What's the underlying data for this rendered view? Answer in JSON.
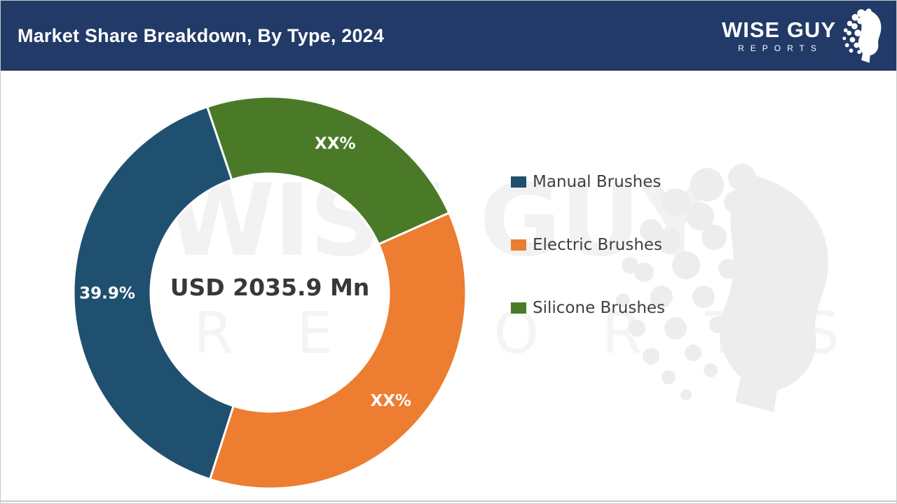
{
  "theme": {
    "header_bg": "#223a68",
    "watermark_gray": "#ededed",
    "separator_white": "#ffffff",
    "center_text_color": "#383838"
  },
  "header": {
    "title": "Market Share Breakdown, By Type, 2024",
    "logo": {
      "line1": "WISE GUY",
      "line2": "REPORTS"
    }
  },
  "watermark": {
    "line1": "WISE GUY",
    "line2": "R E P O R T S"
  },
  "chart_data": {
    "type": "pie",
    "subtype": "donut",
    "title": "Market Share Breakdown, By Type, 2024",
    "center_label": "USD 2035.9 Mn",
    "start_angle_deg": -18.6,
    "direction": "clockwise",
    "segments": [
      {
        "name": "Silicone Brushes",
        "value_pct": 23.5,
        "display_label": "XX%",
        "color": "#4a7a28"
      },
      {
        "name": "Electric Brushes",
        "value_pct": 36.6,
        "display_label": "XX%",
        "color": "#ed7d31"
      },
      {
        "name": "Manual Brushes",
        "value_pct": 39.9,
        "display_label": "39.9%",
        "color": "#20506f"
      }
    ],
    "legend": {
      "position": "right",
      "items": [
        {
          "label": "Manual Brushes",
          "color": "#20506f"
        },
        {
          "label": "Electric Brushes",
          "color": "#ed7d31"
        },
        {
          "label": "Silicone Brushes",
          "color": "#4a7a28"
        }
      ]
    },
    "geometry": {
      "outer_radius": 280,
      "inner_radius": 170,
      "label_radius": 232
    }
  }
}
